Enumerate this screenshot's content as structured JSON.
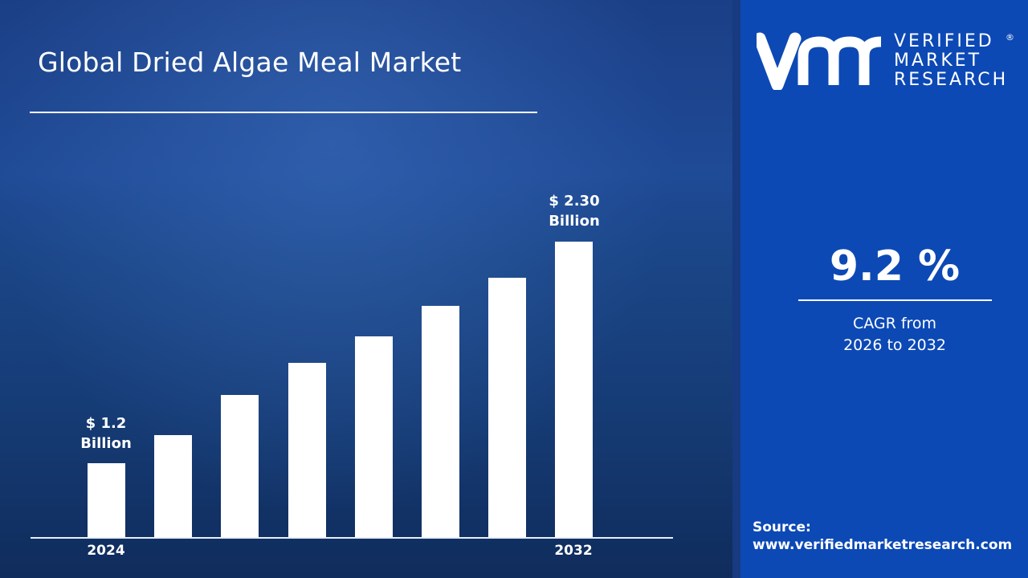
{
  "header": {
    "title": "Global Dried Algae Meal Market"
  },
  "brand": {
    "logo_mark": "vmr",
    "logo_lines": [
      "VERIFIED",
      "MARKET",
      "RESEARCH"
    ],
    "registered": "®"
  },
  "cagr": {
    "value": "9.2 %",
    "label_line1": "CAGR from",
    "label_line2": "2026 to 2032"
  },
  "source": {
    "label": "Source:",
    "url": "www.verifiedmarketresearch.com"
  },
  "colors": {
    "panel": "#0c49b5",
    "bars": "#ffffff",
    "background": "#1b3f86"
  },
  "chart_data": {
    "type": "bar",
    "title": "Global Dried Algae Meal Market",
    "tick_labels": [
      "2024",
      "",
      "",
      "",
      "",
      "",
      "",
      "2032"
    ],
    "values": [
      1.2,
      1.34,
      1.54,
      1.7,
      1.83,
      1.98,
      2.12,
      2.3
    ],
    "unit": "USD Billion",
    "data_labels": [
      {
        "index": 0,
        "line1": "$ 1.2",
        "line2": "Billion"
      },
      {
        "index": 7,
        "line1": "$ 2.30",
        "line2": "Billion"
      }
    ],
    "grid": false,
    "legend": "none"
  }
}
